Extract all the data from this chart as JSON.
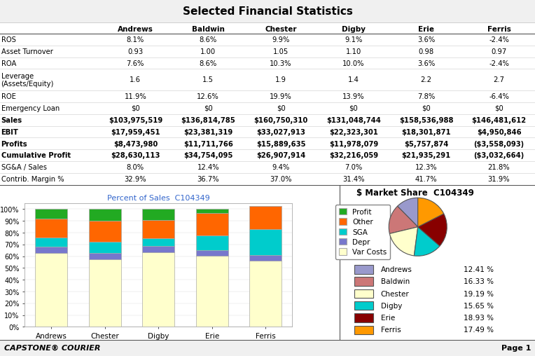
{
  "title": "Selected Financial Statistics",
  "columns": [
    "Andrews",
    "Baldwin",
    "Chester",
    "Digby",
    "Erie",
    "Ferris"
  ],
  "rows": [
    {
      "label": "ROS",
      "values": [
        "8.1%",
        "8.6%",
        "9.9%",
        "9.1%",
        "3.6%",
        "-2.4%"
      ],
      "bold": false
    },
    {
      "label": "Asset Turnover",
      "values": [
        "0.93",
        "1.00",
        "1.05",
        "1.10",
        "0.98",
        "0.97"
      ],
      "bold": false
    },
    {
      "label": "ROA",
      "values": [
        "7.6%",
        "8.6%",
        "10.3%",
        "10.0%",
        "3.6%",
        "-2.4%"
      ],
      "bold": false
    },
    {
      "label": "Leverage\n(Assets/Equity)",
      "values": [
        "1.6",
        "1.5",
        "1.9",
        "1.4",
        "2.2",
        "2.7"
      ],
      "bold": false,
      "tall": true
    },
    {
      "label": "ROE",
      "values": [
        "11.9%",
        "12.6%",
        "19.9%",
        "13.9%",
        "7.8%",
        "-6.4%"
      ],
      "bold": false
    },
    {
      "label": "Emergency Loan",
      "values": [
        "$0",
        "$0",
        "$0",
        "$0",
        "$0",
        "$0"
      ],
      "bold": false
    },
    {
      "label": "Sales",
      "values": [
        "$103,975,519",
        "$136,814,785",
        "$160,750,310",
        "$131,048,744",
        "$158,536,988",
        "$146,481,612"
      ],
      "bold": true
    },
    {
      "label": "EBIT",
      "values": [
        "$17,959,451",
        "$23,381,319",
        "$33,027,913",
        "$22,323,301",
        "$18,301,871",
        "$4,950,846"
      ],
      "bold": true
    },
    {
      "label": "Profits",
      "values": [
        "$8,473,980",
        "$11,711,766",
        "$15,889,635",
        "$11,978,079",
        "$5,757,874",
        "($3,558,093)"
      ],
      "bold": true
    },
    {
      "label": "Cumulative Profit",
      "values": [
        "$28,630,113",
        "$34,754,095",
        "$26,907,914",
        "$32,216,059",
        "$21,935,291",
        "($3,032,664)"
      ],
      "bold": true
    },
    {
      "label": "SG&A / Sales",
      "values": [
        "8.0%",
        "12.4%",
        "9.4%",
        "7.0%",
        "12.3%",
        "21.8%"
      ],
      "bold": false
    },
    {
      "label": "Contrib. Margin %",
      "values": [
        "32.9%",
        "36.7%",
        "37.0%",
        "31.4%",
        "41.7%",
        "31.9%"
      ],
      "bold": false
    }
  ],
  "bar_chart": {
    "title": "Percent of Sales  C104349",
    "categories": [
      "Andrews",
      "Chester",
      "Digby",
      "Erie",
      "Ferris"
    ],
    "segments_order": [
      "Var Costs",
      "Depr",
      "SGA",
      "Other",
      "Profit"
    ],
    "segments": {
      "Profit": [
        0.082,
        0.099,
        0.091,
        0.036,
        -0.024
      ],
      "Other": [
        0.159,
        0.181,
        0.154,
        0.187,
        0.195
      ],
      "SGA": [
        0.08,
        0.094,
        0.07,
        0.123,
        0.218
      ],
      "Depr": [
        0.05,
        0.05,
        0.05,
        0.05,
        0.05
      ],
      "Var Costs": [
        0.629,
        0.576,
        0.635,
        0.604,
        0.561
      ]
    },
    "colors": {
      "Profit": "#22aa22",
      "Other": "#ff6600",
      "SGA": "#00cccc",
      "Depr": "#7777cc",
      "Var Costs": "#ffffcc"
    }
  },
  "pie_chart": {
    "title": "$ Market Share  C104349",
    "labels": [
      "Andrews",
      "Baldwin",
      "Chester",
      "Digby",
      "Erie",
      "Ferris"
    ],
    "values": [
      12.41,
      16.33,
      19.19,
      15.65,
      18.93,
      17.49
    ],
    "colors": [
      "#9999cc",
      "#cc7777",
      "#ffffcc",
      "#00cccc",
      "#880000",
      "#ff9900"
    ],
    "pct_labels": [
      "12.41 %",
      "16.33 %",
      "19.19 %",
      "15.65 %",
      "18.93 %",
      "17.49 %"
    ]
  },
  "footer_left": "CAPSTONE® COURIER",
  "footer_right": "Page 1"
}
